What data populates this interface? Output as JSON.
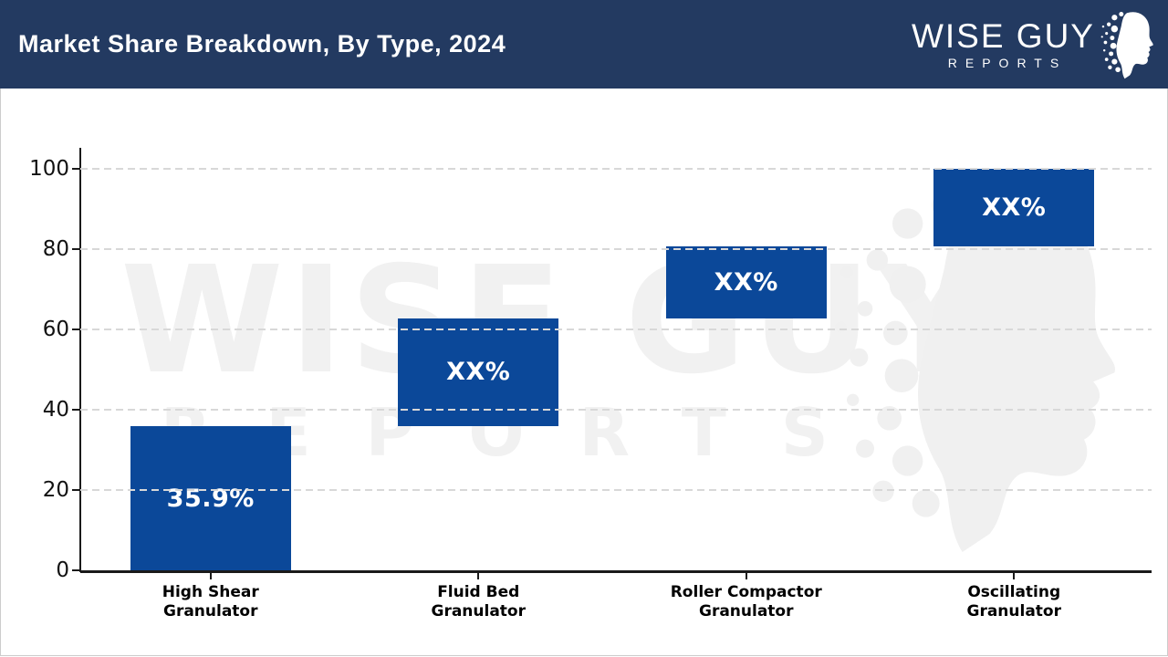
{
  "header": {
    "title": "Market Share Breakdown, By Type, 2024",
    "logo": {
      "primary": "WISE GUY",
      "secondary": "REPORTS"
    },
    "colors": {
      "background": "#233A61",
      "text": "#FFFFFF"
    }
  },
  "watermark": {
    "primary": "WISE GUY",
    "secondary": "REPORTS"
  },
  "chart_data": {
    "type": "bar",
    "subtype": "stacked-waterfall-floating-bars",
    "title": "Market Share Breakdown, By Type, 2024",
    "categories": [
      [
        "High Shear",
        "Granulator"
      ],
      [
        "Fluid Bed",
        "Granulator"
      ],
      [
        "Roller Compactor",
        "Granulator"
      ],
      [
        "Oscillating",
        "Granulator"
      ]
    ],
    "segments": [
      {
        "start": 0,
        "end": 35.9,
        "label": "35.9%"
      },
      {
        "start": 35.9,
        "end": 62.8,
        "label": "XX%"
      },
      {
        "start": 62.8,
        "end": 80.6,
        "label": "XX%"
      },
      {
        "start": 80.6,
        "end": 100,
        "label": "XX%"
      }
    ],
    "xlabel": "",
    "ylabel": "",
    "ylim": [
      0,
      100
    ],
    "yticks": [
      0,
      20,
      40,
      60,
      80,
      100
    ],
    "grid": {
      "horizontal": true,
      "style": "dashed"
    },
    "legend": "none",
    "colors": {
      "bar": "#0B4899",
      "bar_label": "#FFFFFF",
      "axis": "#1A1A1A",
      "gridline": "#D8D8D8",
      "tick_label": "#111111"
    }
  }
}
